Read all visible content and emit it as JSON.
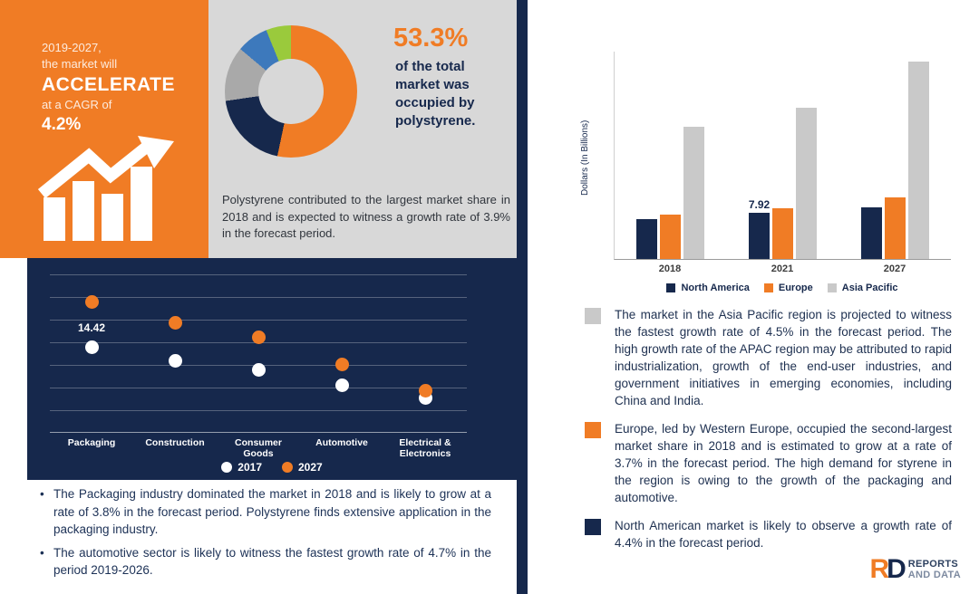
{
  "accelerate_panel": {
    "period": "2019-2027,",
    "line2": "the market will",
    "headline": "ACCELERATE",
    "line4": "at a CAGR of",
    "cagr": "4.2%"
  },
  "polystyrene_panel": {
    "share_stat": "53.3%",
    "share_caption": "of the total market was occupied by polystyrene.",
    "note": "Polystyrene contributed to the largest market share in 2018 and is expected to witness a growth rate of 3.9% in the forecast period."
  },
  "industry_notes": [
    "The Packaging industry dominated the market in 2018 and is likely to grow at a rate of 3.8% in the forecast period. Polystyrene finds extensive application in the packaging industry.",
    "The automotive sector is likely to witness the fastest growth rate of 4.7% in the period 2019-2026."
  ],
  "region_notes": [
    {
      "color": "#c9c9c9",
      "text": "The market in the Asia Pacific region is projected to witness the fastest growth rate of 4.5% in the forecast period. The high growth rate of the APAC region may be attributed to rapid industrialization, growth of the end-user industries, and government initiatives in emerging economies, including China and India."
    },
    {
      "color": "#f07c25",
      "text": "Europe, led by Western Europe, occupied the second-largest market share in 2018 and is estimated to grow at a rate of 3.7% in the forecast period. The high demand for styrene in the region is owing to the growth of the packaging and automotive."
    },
    {
      "color": "#16284c",
      "text": "North American market is likely to observe a growth rate of 4.4% in the forecast period."
    }
  ],
  "logo": {
    "mark_r": "R",
    "mark_d": "D",
    "name_line1": "REPORTS",
    "name_line2": "AND DATA"
  },
  "colors": {
    "orange": "#f07c25",
    "navy": "#16284c",
    "panel_gray": "#d8d8d8",
    "bar_gray": "#c9c9c9"
  },
  "chart_data": [
    {
      "type": "pie",
      "subtype": "donut",
      "segments": [
        {
          "label": "Polystyrene",
          "value": 53.3,
          "color": "#f07c25"
        },
        {
          "label": "unlabeled-1",
          "value": 19.4,
          "color": "#16284c"
        },
        {
          "label": "unlabeled-2",
          "value": 13.4,
          "color": "#a9a9a9"
        },
        {
          "label": "unlabeled-3",
          "value": 7.8,
          "color": "#3d79bc"
        },
        {
          "label": "unlabeled-4",
          "value": 6.1,
          "color": "#9aca3c"
        }
      ],
      "callout": "53.3% of the total market was occupied by polystyrene."
    },
    {
      "type": "scatter",
      "categories": [
        "Packaging",
        "Construction",
        "Consumer Goods",
        "Automotive",
        "Electrical & Electronics"
      ],
      "series": [
        {
          "name": "2017",
          "color": "#ffffff",
          "values": [
            14.42,
            12.8,
            11.8,
            9.9,
            8.4
          ]
        },
        {
          "name": "2027",
          "color": "#f07c25",
          "values": [
            19.8,
            17.3,
            15.6,
            12.4,
            9.3
          ]
        }
      ],
      "data_labels": [
        {
          "series": "2017",
          "category": "Packaging",
          "text": "14.42"
        }
      ],
      "ylim": [
        7,
        23
      ],
      "grid": true,
      "legend_position": "bottom"
    },
    {
      "type": "bar",
      "ylabel": "Dollars (In Billions)",
      "categories": [
        "2018",
        "2021",
        "2027"
      ],
      "series": [
        {
          "name": "North America",
          "color": "#16284c",
          "values": [
            6.9,
            7.92,
            9.0
          ]
        },
        {
          "name": "Europe",
          "color": "#f07c25",
          "values": [
            7.7,
            8.7,
            10.6
          ]
        },
        {
          "name": "Asia Pacific",
          "color": "#c9c9c9",
          "values": [
            22.8,
            26.2,
            34.2
          ]
        }
      ],
      "data_labels": [
        {
          "series": "North America",
          "category": "2021",
          "text": "7.92"
        }
      ],
      "ylim": [
        0,
        36
      ],
      "legend_position": "bottom"
    }
  ]
}
